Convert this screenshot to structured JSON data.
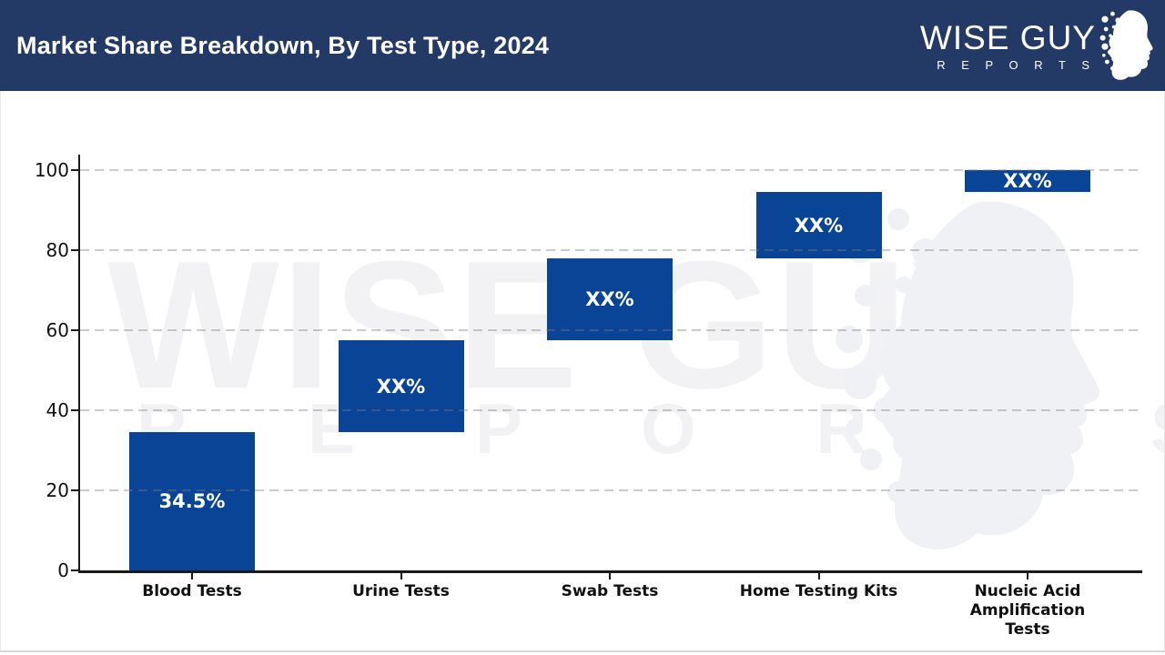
{
  "header": {
    "title": "Market Share Breakdown, By Test Type, 2024"
  },
  "brand": {
    "line1": "WISE GUY",
    "line2": "R E P O R T S"
  },
  "watermark": {
    "line1": "WISE GUY",
    "line2": "R E P O R T S"
  },
  "colors": {
    "header_bg": "#233a66",
    "bar": "#0a4496",
    "axis": "#1a1a1a",
    "grid": "rgba(125,125,125,0.4)",
    "bar_label": "#ffffff",
    "title_text": "#ffffff",
    "tick_text": "#111111",
    "watermark": "#f2f2f4"
  },
  "chart_data": {
    "type": "bar",
    "subtype": "waterfall",
    "title": "Market Share Breakdown, By Test Type, 2024",
    "categories": [
      "Blood Tests",
      "Urine Tests",
      "Swab Tests",
      "Home Testing Kits",
      "Nucleic Acid Amplification Tests"
    ],
    "segments": [
      {
        "category": "Blood Tests",
        "start": 0,
        "end": 34.5,
        "value": 34.5,
        "label": "34.5%"
      },
      {
        "category": "Urine Tests",
        "start": 34.5,
        "end": 57.5,
        "value": 23,
        "label": "XX%"
      },
      {
        "category": "Swab Tests",
        "start": 57.5,
        "end": 78,
        "value": 20.5,
        "label": "XX%"
      },
      {
        "category": "Home Testing Kits",
        "start": 78,
        "end": 94.5,
        "value": 16.5,
        "label": "XX%"
      },
      {
        "category": "Nucleic Acid Amplification Tests",
        "start": 94.5,
        "end": 100,
        "value": 5.5,
        "label": "XX%"
      }
    ],
    "yticks": [
      0,
      20,
      40,
      60,
      80,
      100
    ],
    "ylim": [
      0,
      100
    ],
    "grid": "horizontal-dashed",
    "legend": null
  }
}
